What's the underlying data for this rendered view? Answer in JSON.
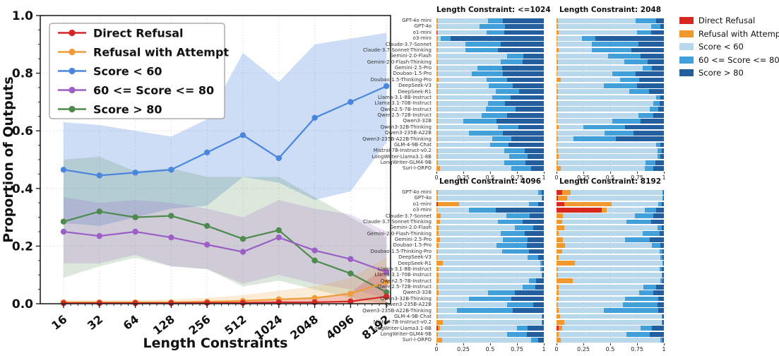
{
  "colors": {
    "direct_refusal": "#d7291f",
    "refusal_with_attempt": "#f0992f",
    "score_lt_60_bar": "#b9d8ec",
    "score_60_80_bar": "#41a0d9",
    "score_gt_80_bar": "#235f9e",
    "line_red": "#d62728",
    "line_orange": "#ef9c38",
    "line_blue": "#4a86dd",
    "line_purple": "#9c5fc6",
    "line_green": "#4e8a4e"
  },
  "legend_right": {
    "items": [
      {
        "label": "Direct Refusal",
        "color": "#d7291f"
      },
      {
        "label": "Refusal with Attempt",
        "color": "#f0992f"
      },
      {
        "label": "Score < 60",
        "color": "#b9d8ec"
      },
      {
        "label": "60 <= Score <= 80",
        "color": "#41a0d9"
      },
      {
        "label": "Score > 80",
        "color": "#235f9e"
      }
    ]
  },
  "chart_data": [
    {
      "type": "line",
      "title": "",
      "xlabel": "Length Constraints",
      "ylabel": "Proportion of Outputs",
      "x": [
        "16",
        "32",
        "64",
        "128",
        "256",
        "512",
        "1024",
        "2048",
        "4096",
        "8192"
      ],
      "ylim": [
        0,
        1
      ],
      "y_ticks": [
        "0.0",
        "0.2",
        "0.4",
        "0.6",
        "0.8",
        "1.0"
      ],
      "grid": "dotted",
      "legend_position": "upper left",
      "series": [
        {
          "name": "Direct Refusal",
          "color": "#d62728",
          "values": [
            0.002,
            0.002,
            0.002,
            0.002,
            0.003,
            0.003,
            0.005,
            0.005,
            0.008,
            0.025
          ],
          "band_upper": [
            0.005,
            0.005,
            0.005,
            0.005,
            0.008,
            0.01,
            0.015,
            0.02,
            0.04,
            0.13
          ],
          "band_lower": [
            0,
            0,
            0,
            0,
            0,
            0,
            0,
            0,
            0,
            0
          ]
        },
        {
          "name": "Refusal with Attempt",
          "color": "#ef9c38",
          "values": [
            0.005,
            0.005,
            0.005,
            0.005,
            0.007,
            0.01,
            0.015,
            0.02,
            0.035,
            0.075
          ],
          "band_upper": [
            0.012,
            0.012,
            0.012,
            0.015,
            0.02,
            0.03,
            0.045,
            0.06,
            0.09,
            0.16
          ],
          "band_lower": [
            0,
            0,
            0,
            0,
            0,
            0,
            0,
            0,
            0,
            0
          ]
        },
        {
          "name": "Score < 60",
          "color": "#4a86dd",
          "values": [
            0.465,
            0.445,
            0.455,
            0.465,
            0.525,
            0.585,
            0.505,
            0.645,
            0.7,
            0.755
          ],
          "band_upper": [
            0.63,
            0.62,
            0.6,
            0.58,
            0.64,
            0.87,
            0.77,
            0.9,
            0.92,
            0.94
          ],
          "band_lower": [
            0.28,
            0.27,
            0.3,
            0.33,
            0.34,
            0.44,
            0.42,
            0.36,
            0.39,
            0.56
          ]
        },
        {
          "name": "60 <= Score <= 80",
          "color": "#9c5fc6",
          "values": [
            0.25,
            0.235,
            0.25,
            0.23,
            0.205,
            0.18,
            0.23,
            0.185,
            0.155,
            0.11
          ],
          "band_upper": [
            0.37,
            0.35,
            0.36,
            0.35,
            0.33,
            0.3,
            0.36,
            0.33,
            0.31,
            0.25
          ],
          "band_lower": [
            0.14,
            0.14,
            0.17,
            0.13,
            0.12,
            0.07,
            0.1,
            0.07,
            0.05,
            0.02
          ]
        },
        {
          "name": "Score > 80",
          "color": "#4e8a4e",
          "values": [
            0.285,
            0.32,
            0.3,
            0.305,
            0.27,
            0.225,
            0.255,
            0.15,
            0.105,
            0.04
          ],
          "band_upper": [
            0.5,
            0.51,
            0.46,
            0.47,
            0.44,
            0.44,
            0.44,
            0.37,
            0.3,
            0.23
          ],
          "band_lower": [
            0.09,
            0.13,
            0.16,
            0.13,
            0.12,
            0.06,
            0.08,
            0.05,
            0.02,
            0.0
          ]
        }
      ]
    },
    {
      "type": "bar",
      "orientation": "horizontal",
      "stacked": true,
      "title": "Length Constraint: <=1024",
      "x_ticks": [
        "0",
        "0.25",
        "0.5",
        "0.75",
        "1"
      ],
      "segment_order": [
        "Direct Refusal",
        "Refusal with Attempt",
        "Score < 60",
        "60 <= Score <= 80",
        "Score > 80"
      ],
      "categories": [
        "GPT-4o mini",
        "GPT-4o",
        "o1-mini",
        "o3-mini",
        "Claude-3.7-Sonnet",
        "Claude-3.7-Sonnet-Thinking",
        "Gemini-2.0-Flash",
        "Gemini-2.0-Flash-Thinking",
        "Gemini-2.5-Pro",
        "Doubao-1.5-Pro",
        "Doubao-1.5-Thinking-Pro",
        "DeepSeek-V3",
        "DeepSeek-R1",
        "Llama-3.1-8B-Instruct",
        "Llama-3.1-70B-Instruct",
        "Qwen2.5-7B-Instruct",
        "Qwen2.5-72B-Instruct",
        "Qwen3-32B",
        "Qwen3-32B-Thinking",
        "Qwen3-235B-A22B",
        "Qwen3-235B-A22B-Thinking",
        "GLM-4-9B-Chat",
        "Mistral-7B-Instruct-v0.2",
        "LongWriter-Llama3.1-8B",
        "LongWriter-GLM4-9B",
        "Suri-I-ORPO"
      ],
      "rows": [
        [
          0,
          0.01,
          0.47,
          0.14,
          0.38
        ],
        [
          0,
          0.01,
          0.39,
          0.24,
          0.36
        ],
        [
          0.005,
          0.005,
          0.46,
          0.16,
          0.37
        ],
        [
          0,
          0.01,
          0.03,
          0.09,
          0.87
        ],
        [
          0,
          0.01,
          0.26,
          0.33,
          0.4
        ],
        [
          0,
          0.01,
          0.26,
          0.3,
          0.43
        ],
        [
          0,
          0.005,
          0.655,
          0.15,
          0.19
        ],
        [
          0,
          0.01,
          0.59,
          0.2,
          0.2
        ],
        [
          0,
          0.01,
          0.37,
          0.23,
          0.39
        ],
        [
          0,
          0.01,
          0.32,
          0.29,
          0.38
        ],
        [
          0,
          0.02,
          0.45,
          0.19,
          0.34
        ],
        [
          0,
          0.01,
          0.48,
          0.22,
          0.29
        ],
        [
          0,
          0.01,
          0.54,
          0.22,
          0.23
        ],
        [
          0,
          0.01,
          0.51,
          0.17,
          0.31
        ],
        [
          0,
          0.01,
          0.47,
          0.16,
          0.36
        ],
        [
          0,
          0.01,
          0.45,
          0.28,
          0.26
        ],
        [
          0,
          0.01,
          0.41,
          0.24,
          0.34
        ],
        [
          0,
          0.01,
          0.24,
          0.31,
          0.44
        ],
        [
          0,
          0.01,
          0.56,
          0.19,
          0.24
        ],
        [
          0,
          0.01,
          0.29,
          0.32,
          0.38
        ],
        [
          0,
          0.01,
          0.51,
          0.18,
          0.3
        ],
        [
          0,
          0.01,
          0.49,
          0.17,
          0.33
        ],
        [
          0,
          0.01,
          0.62,
          0.19,
          0.18
        ],
        [
          0,
          0.01,
          0.67,
          0.17,
          0.15
        ],
        [
          0,
          0.01,
          0.62,
          0.2,
          0.17
        ],
        [
          0,
          0.03,
          0.67,
          0.18,
          0.12
        ]
      ]
    },
    {
      "type": "bar",
      "orientation": "horizontal",
      "stacked": true,
      "title": "Length Constraint: 2048",
      "x_ticks": [
        "0",
        "0.25",
        "0.5",
        "0.75",
        "1"
      ],
      "segment_order": [
        "Direct Refusal",
        "Refusal with Attempt",
        "Score < 60",
        "60 <= Score <= 80",
        "Score > 80"
      ],
      "rows": [
        [
          0,
          0.01,
          0.73,
          0.19,
          0.07
        ],
        [
          0,
          0.01,
          0.87,
          0.09,
          0.03
        ],
        [
          0,
          0.02,
          0.73,
          0.13,
          0.12
        ],
        [
          0,
          0.005,
          0.235,
          0.12,
          0.64
        ],
        [
          0,
          0.005,
          0.325,
          0.43,
          0.24
        ],
        [
          0,
          0.02,
          0.31,
          0.37,
          0.3
        ],
        [
          0,
          0.005,
          0.475,
          0.3,
          0.22
        ],
        [
          0,
          0.01,
          0.62,
          0.22,
          0.15
        ],
        [
          0,
          0.015,
          0.785,
          0.09,
          0.11
        ],
        [
          0,
          0.005,
          0.515,
          0.215,
          0.265
        ],
        [
          0,
          0.04,
          0.55,
          0.18,
          0.23
        ],
        [
          0,
          0.005,
          0.435,
          0.31,
          0.25
        ],
        [
          0,
          0.01,
          0.67,
          0.18,
          0.14
        ],
        [
          0,
          0.01,
          0.92,
          0.04,
          0.03
        ],
        [
          0,
          0.01,
          0.89,
          0.06,
          0.04
        ],
        [
          0,
          0.01,
          0.86,
          0.08,
          0.05
        ],
        [
          0,
          0.005,
          0.755,
          0.14,
          0.1
        ],
        [
          0,
          0.005,
          0.515,
          0.26,
          0.22
        ],
        [
          0,
          0.02,
          0.23,
          0.39,
          0.36
        ],
        [
          0,
          0.005,
          0.445,
          0.27,
          0.28
        ],
        [
          0,
          0.01,
          0.15,
          0.39,
          0.45
        ],
        [
          0,
          0.005,
          0.925,
          0.04,
          0.03
        ],
        [
          0,
          0.01,
          0.93,
          0.04,
          0.02
        ],
        [
          0,
          0.02,
          0.92,
          0.03,
          0.03
        ],
        [
          0,
          0.01,
          0.82,
          0.09,
          0.08
        ],
        [
          0,
          0.04,
          0.78,
          0.08,
          0.1
        ]
      ]
    },
    {
      "type": "bar",
      "orientation": "horizontal",
      "stacked": true,
      "title": "Length Constraint: 4096",
      "x_ticks": [
        "0",
        "0.25",
        "0.5",
        "0.75",
        "1"
      ],
      "segment_order": [
        "Direct Refusal",
        "Refusal with Attempt",
        "Score < 60",
        "60 <= Score <= 80",
        "Score > 80"
      ],
      "rows": [
        [
          0,
          0.01,
          0.94,
          0.03,
          0.02
        ],
        [
          0,
          0.01,
          0.97,
          0.01,
          0.01
        ],
        [
          0.01,
          0.2,
          0.65,
          0.09,
          0.05
        ],
        [
          0,
          0.005,
          0.295,
          0.25,
          0.45
        ],
        [
          0,
          0.04,
          0.61,
          0.22,
          0.13
        ],
        [
          0,
          0.03,
          0.54,
          0.23,
          0.2
        ],
        [
          0,
          0.02,
          0.71,
          0.17,
          0.1
        ],
        [
          0,
          0.02,
          0.58,
          0.22,
          0.18
        ],
        [
          0,
          0.03,
          0.59,
          0.23,
          0.15
        ],
        [
          0,
          0.02,
          0.54,
          0.28,
          0.16
        ],
        [
          0,
          0.01,
          0.6,
          0.25,
          0.14
        ],
        [
          0,
          0.005,
          0.845,
          0.1,
          0.05
        ],
        [
          0,
          0.06,
          0.91,
          0.02,
          0.01
        ],
        [
          0,
          0.02,
          0.95,
          0.02,
          0.01
        ],
        [
          0,
          0.02,
          0.96,
          0.01,
          0.01
        ],
        [
          0,
          0.02,
          0.84,
          0.07,
          0.07
        ],
        [
          0,
          0.01,
          0.79,
          0.12,
          0.08
        ],
        [
          0,
          0.02,
          0.46,
          0.25,
          0.27
        ],
        [
          0,
          0.01,
          0.29,
          0.4,
          0.3
        ],
        [
          0,
          0.01,
          0.65,
          0.24,
          0.1
        ],
        [
          0,
          0.01,
          0.18,
          0.52,
          0.29
        ],
        [
          0,
          0.01,
          0.97,
          0.01,
          0.01
        ],
        [
          0,
          0.06,
          0.92,
          0.01,
          0.01
        ],
        [
          0.01,
          0.02,
          0.72,
          0.1,
          0.15
        ],
        [
          0,
          0.01,
          0.65,
          0.18,
          0.16
        ],
        [
          0,
          0.05,
          0.83,
          0.07,
          0.05
        ]
      ]
    },
    {
      "type": "bar",
      "orientation": "horizontal",
      "stacked": true,
      "title": "Length Constraint: 8192",
      "x_ticks": [
        "0",
        "0.25",
        "0.5",
        "0.75",
        "1"
      ],
      "segment_order": [
        "Direct Refusal",
        "Refusal with Attempt",
        "Score < 60",
        "60 <= Score <= 80",
        "Score > 80"
      ],
      "rows": [
        [
          0.05,
          0.08,
          0.86,
          0.005,
          0.005
        ],
        [
          0.01,
          0.09,
          0.89,
          0.005,
          0.005
        ],
        [
          0.07,
          0.44,
          0.44,
          0.03,
          0.02
        ],
        [
          0.42,
          0.05,
          0.35,
          0.11,
          0.07
        ],
        [
          0,
          0.06,
          0.67,
          0.17,
          0.1
        ],
        [
          0,
          0.05,
          0.6,
          0.23,
          0.12
        ],
        [
          0,
          0.07,
          0.87,
          0.04,
          0.02
        ],
        [
          0,
          0.02,
          0.78,
          0.16,
          0.04
        ],
        [
          0,
          0.06,
          0.58,
          0.23,
          0.13
        ],
        [
          0,
          0.08,
          0.81,
          0.08,
          0.03
        ],
        [
          0,
          0.05,
          0.91,
          0.03,
          0.01
        ],
        [
          0,
          0.02,
          0.95,
          0.02,
          0.01
        ],
        [
          0,
          0.17,
          0.82,
          0.005,
          0.005
        ],
        [
          0,
          0.01,
          0.95,
          0.02,
          0.02
        ],
        [
          0,
          0.01,
          0.97,
          0.01,
          0.01
        ],
        [
          0,
          0.15,
          0.82,
          0.02,
          0.01
        ],
        [
          0,
          0.02,
          0.79,
          0.12,
          0.07
        ],
        [
          0,
          0.02,
          0.75,
          0.13,
          0.1
        ],
        [
          0,
          0.02,
          0.62,
          0.31,
          0.05
        ],
        [
          0,
          0.01,
          0.61,
          0.32,
          0.06
        ],
        [
          0,
          0.02,
          0.42,
          0.51,
          0.05
        ],
        [
          0,
          0.03,
          0.95,
          0.01,
          0.01
        ],
        [
          0,
          0.07,
          0.91,
          0.01,
          0.01
        ],
        [
          0.02,
          0.03,
          0.73,
          0.11,
          0.11
        ],
        [
          0,
          0.02,
          0.63,
          0.22,
          0.13
        ],
        [
          0,
          0.04,
          0.93,
          0.02,
          0.01
        ]
      ]
    }
  ]
}
